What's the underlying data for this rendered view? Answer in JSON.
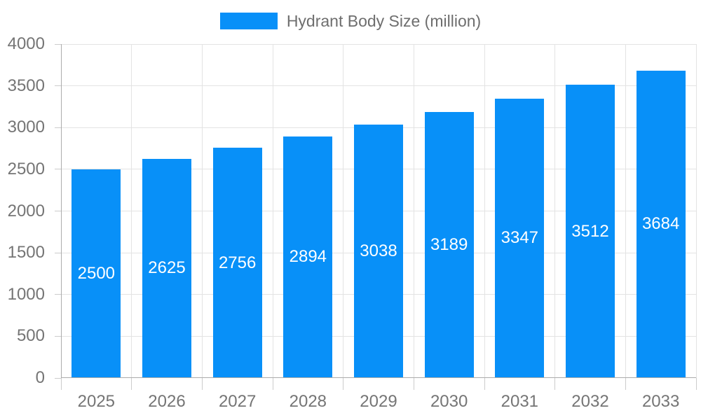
{
  "chart_data": {
    "type": "bar",
    "title": "Hydrant Body Size (million)",
    "categories": [
      "2025",
      "2026",
      "2027",
      "2028",
      "2029",
      "2030",
      "2031",
      "2032",
      "2033"
    ],
    "values": [
      2500,
      2625,
      2756,
      2894,
      3038,
      3189,
      3347,
      3512,
      3684
    ],
    "xlabel": "",
    "ylabel": "",
    "ylim": [
      0,
      4000
    ],
    "ytick_step": 500,
    "ytick_labels": [
      "0",
      "500",
      "1000",
      "1500",
      "2000",
      "2500",
      "3000",
      "3500",
      "4000"
    ],
    "grid": true,
    "legend_position": "top",
    "value_labels_inside_bars": true,
    "colors": {
      "bar": "#0890f8",
      "value_label": "#ffffff",
      "axis_text": "#757575",
      "legend_text": "#6e6e6e",
      "grid_line": "#e3e3e3",
      "axis_line": "#ababab",
      "tick_mark": "#cccccc",
      "background": "#ffffff"
    }
  }
}
